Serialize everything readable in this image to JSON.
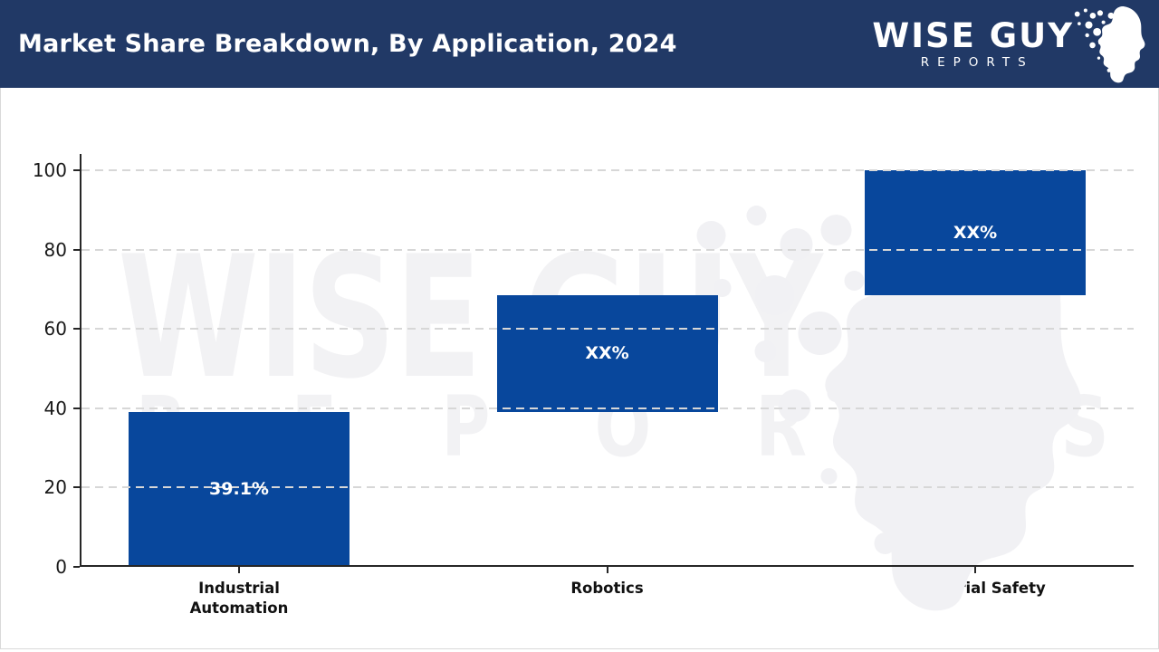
{
  "header": {
    "title": "Market Share Breakdown, By Application, 2024",
    "logo": {
      "line1": "WISE GUY",
      "line2": "REPORTS"
    }
  },
  "watermark": {
    "line1": "WISE GUY",
    "line2": "R E P O R T S"
  },
  "chart_data": {
    "type": "bar",
    "subtype": "floating-segment-waterfall",
    "title": "Market Share Breakdown, By Application, 2024",
    "categories": [
      "Industrial Automation",
      "Robotics",
      "Industrial Safety"
    ],
    "segments": [
      {
        "category": "Industrial Automation",
        "start": 0,
        "end": 39.1,
        "label": "39.1%"
      },
      {
        "category": "Robotics",
        "start": 39.1,
        "end": 68.5,
        "label": "XX%"
      },
      {
        "category": "Industrial Safety",
        "start": 68.5,
        "end": 100,
        "label": "XX%"
      }
    ],
    "yticks": [
      0,
      20,
      40,
      60,
      80,
      100
    ],
    "ylim": [
      0,
      104
    ],
    "grid": "dashed-horizontal",
    "legend": "none",
    "bar_color": "#08479c",
    "value_label_color": "#ffffff",
    "axis_color": "#262626",
    "gridline_color": "#d7d7d7"
  },
  "colors": {
    "header_bg": "#213966",
    "page_bg": "#ffffff",
    "watermark": "#f2f2f4",
    "border": "#d9d9d9"
  }
}
